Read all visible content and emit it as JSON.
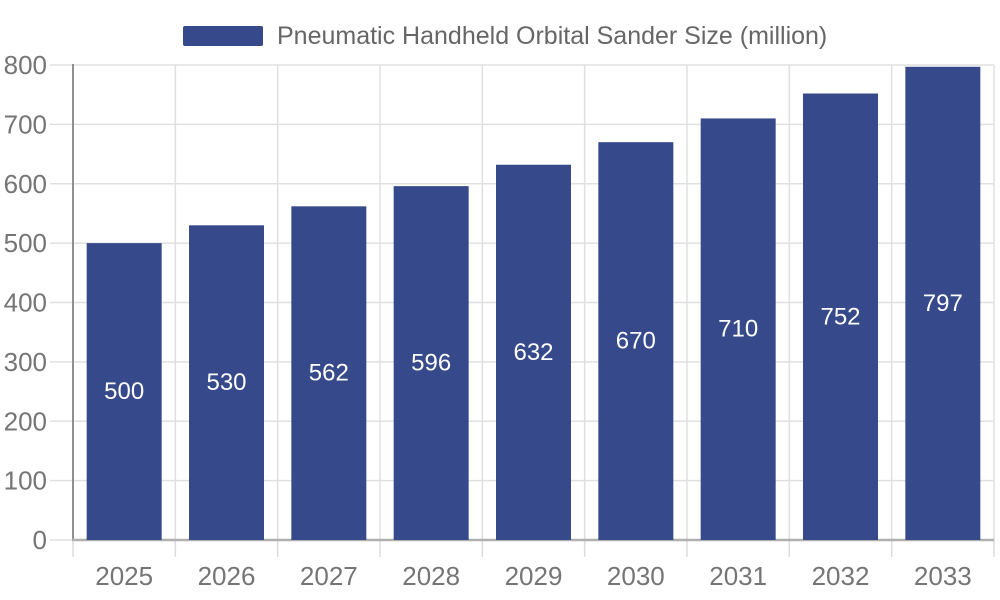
{
  "chart_data": {
    "type": "bar",
    "title": "Pneumatic Handheld Orbital Sander Size (million)",
    "series_name": "Pneumatic Handheld Orbital Sander Size (million)",
    "categories": [
      "2025",
      "2026",
      "2027",
      "2028",
      "2029",
      "2030",
      "2031",
      "2032",
      "2033"
    ],
    "values": [
      500,
      530,
      562,
      596,
      632,
      670,
      710,
      752,
      797
    ],
    "value_labels_shown": true,
    "xlabel": "",
    "ylabel": "",
    "ylim": [
      0,
      800
    ],
    "yticks": [
      0,
      100,
      200,
      300,
      400,
      500,
      600,
      700,
      800
    ],
    "grid": true,
    "legend_position": "top",
    "colors": {
      "bar": "#36498A",
      "bar_label": "#FFFFFF",
      "axis_text": "#757575",
      "legend_text": "#666666",
      "grid_line": "#E0E0E0",
      "y_axis_line": "#8F8F8F",
      "x_axis_line": "#B0B0B0",
      "tick_line": "#DCDCDC"
    }
  }
}
